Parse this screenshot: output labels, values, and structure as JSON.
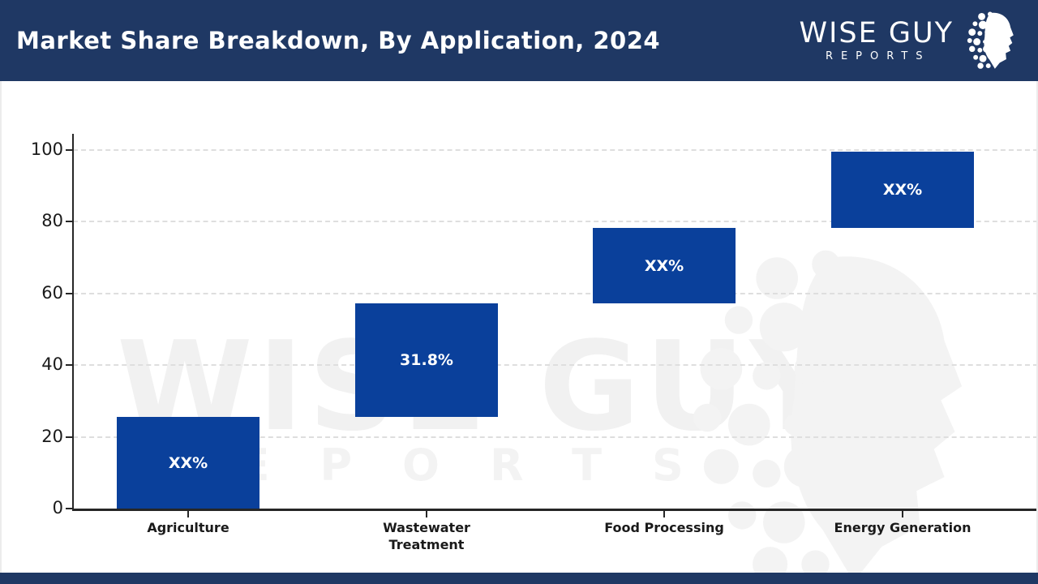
{
  "header": {
    "title": "Market Share Breakdown, By Application, 2024",
    "logo": {
      "line1": "WISE GUY",
      "line2": "REPORTS"
    }
  },
  "watermark": {
    "line1": "WISE GUY",
    "line2": "REPORTS"
  },
  "colors": {
    "header_bg": "#1f3864",
    "footer_bg": "#1f3864",
    "bar": "#0a409b",
    "bar_label": "#ffffff",
    "axis": "#262626",
    "gridline": "#dedede",
    "watermark": "#f1f1f1"
  },
  "chart_data": {
    "type": "bar",
    "subtype": "waterfall-floating-bars",
    "title": "Market Share Breakdown, By Application, 2024",
    "xlabel": "",
    "ylabel": "",
    "ylim": [
      0,
      100
    ],
    "yticks": [
      0,
      20,
      40,
      60,
      80,
      100
    ],
    "grid": "horizontal-dashed",
    "legend": "none",
    "categories": [
      "Agriculture",
      "Wastewater Treatment",
      "Food Processing",
      "Energy Generation"
    ],
    "category_lines": [
      [
        "Agriculture"
      ],
      [
        "Wastewater",
        "Treatment"
      ],
      [
        "Food Processing"
      ],
      [
        "Energy Generation"
      ]
    ],
    "segments": [
      {
        "category": "Agriculture",
        "start": 0,
        "end": 25.5,
        "height": 25.5,
        "label": "XX%"
      },
      {
        "category": "Wastewater Treatment",
        "start": 25.5,
        "end": 57.3,
        "height": 31.8,
        "label": "31.8%"
      },
      {
        "category": "Food Processing",
        "start": 57.3,
        "end": 78.2,
        "height": 20.9,
        "label": "XX%"
      },
      {
        "category": "Energy Generation",
        "start": 78.2,
        "end": 99.5,
        "height": 21.3,
        "label": "XX%"
      }
    ]
  }
}
